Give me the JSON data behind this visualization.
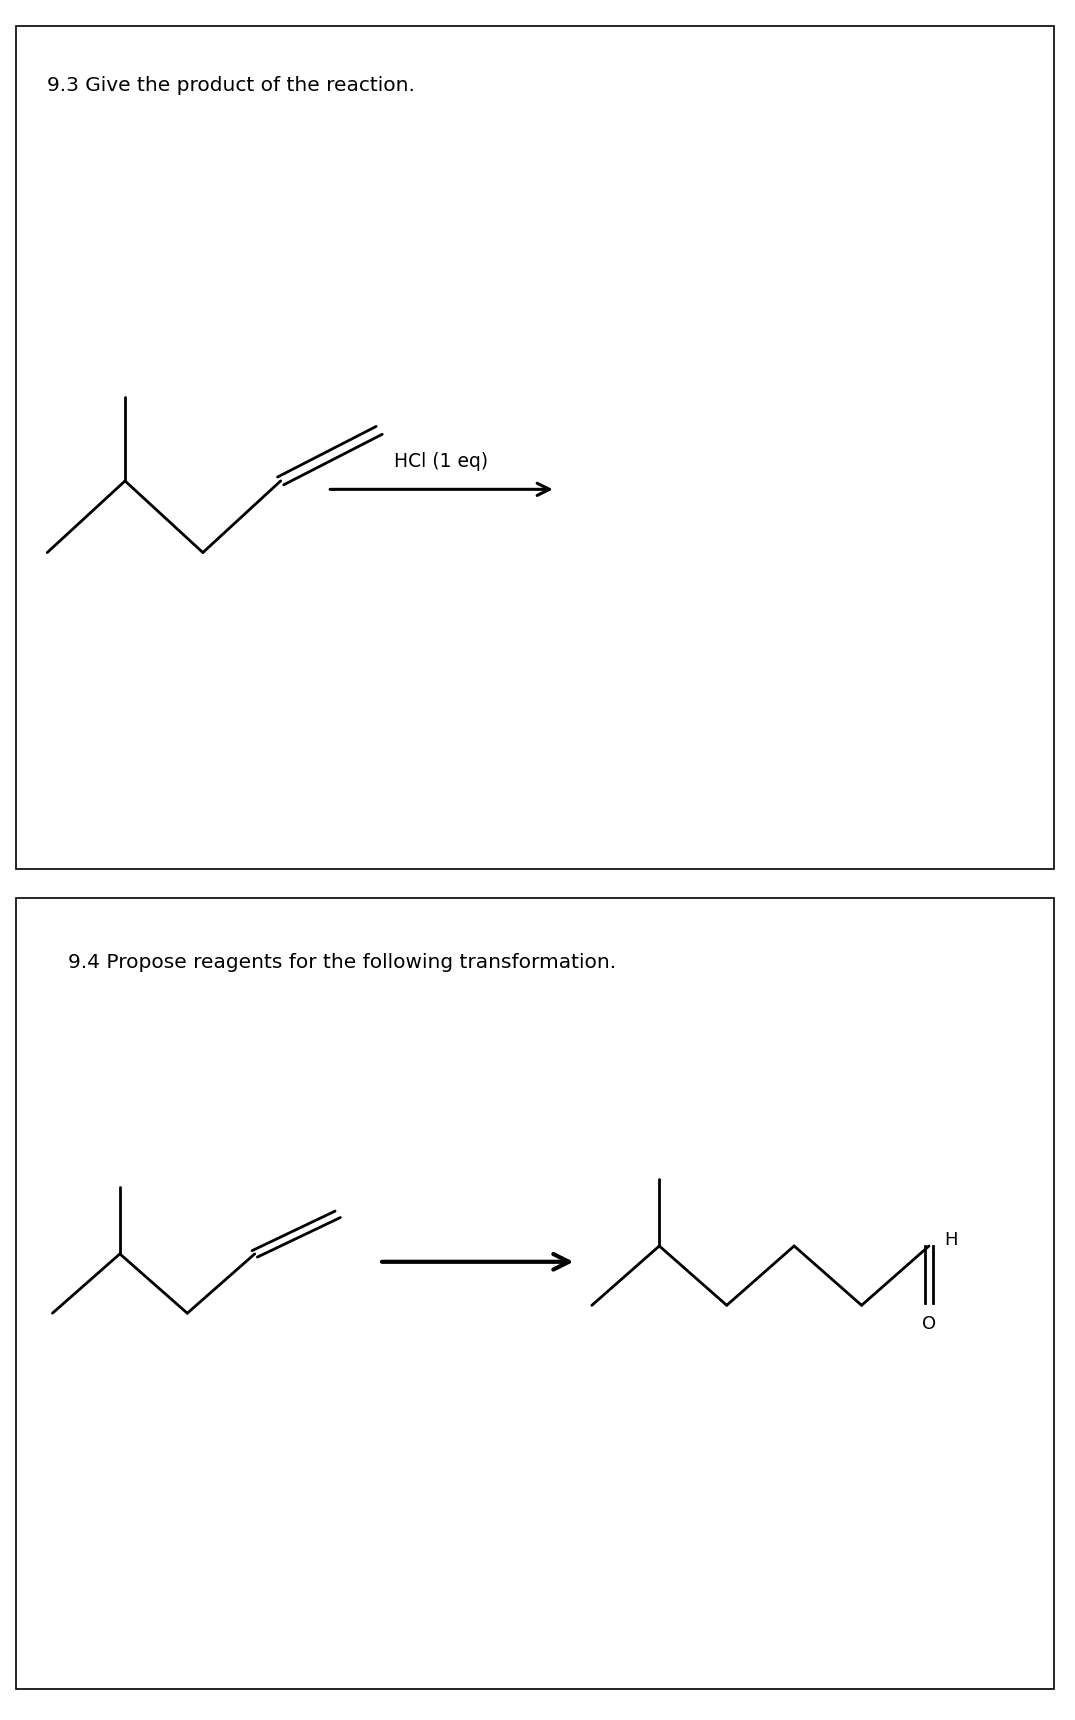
{
  "background_color": "#ffffff",
  "title_93": "9.3 Give the product of the reaction.",
  "title_94": "9.4 Propose reagents for the following transformation.",
  "arrow_label_93": "HCl (1 eq)",
  "font_size_title": 14.5,
  "font_size_label": 13.5,
  "line_color": "#000000",
  "border_color": "#000000",
  "lw": 2.0
}
